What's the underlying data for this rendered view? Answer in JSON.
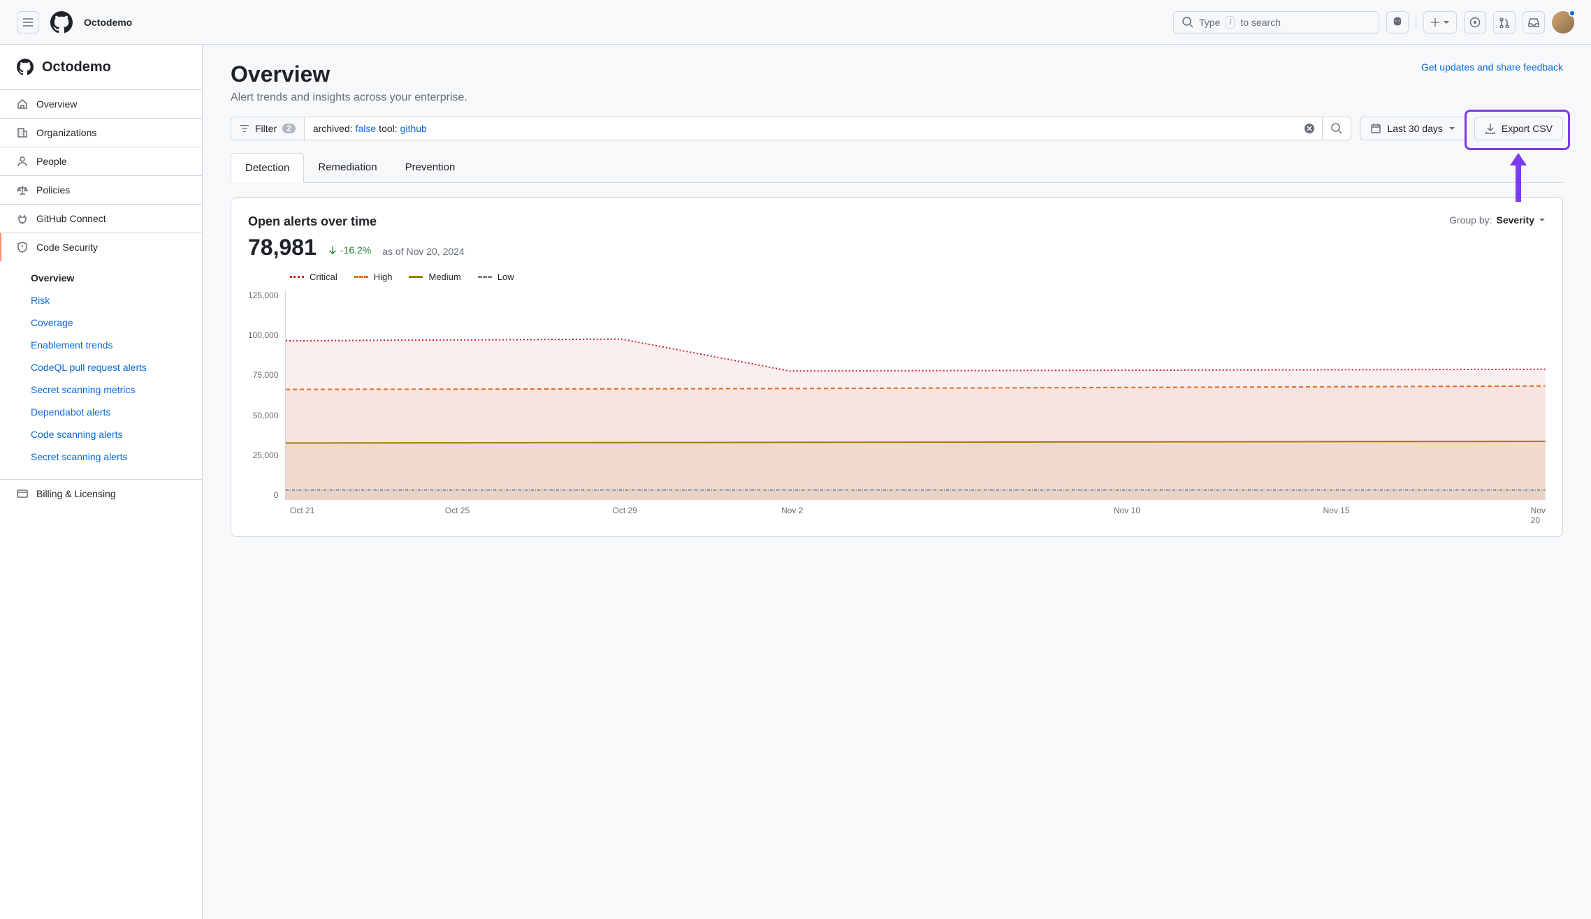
{
  "header": {
    "org_name": "Octodemo",
    "search_prefix": "Type",
    "search_key": "/",
    "search_suffix": "to search"
  },
  "sidebar": {
    "org_name": "Octodemo",
    "items": [
      {
        "label": "Overview"
      },
      {
        "label": "Organizations"
      },
      {
        "label": "People"
      },
      {
        "label": "Policies"
      },
      {
        "label": "GitHub Connect"
      },
      {
        "label": "Code Security"
      }
    ],
    "sub_items": [
      {
        "label": "Overview",
        "active": true
      },
      {
        "label": "Risk"
      },
      {
        "label": "Coverage"
      },
      {
        "label": "Enablement trends"
      },
      {
        "label": "CodeQL pull request alerts"
      },
      {
        "label": "Secret scanning metrics"
      },
      {
        "label": "Dependabot alerts"
      },
      {
        "label": "Code scanning alerts"
      },
      {
        "label": "Secret scanning alerts"
      }
    ],
    "billing_label": "Billing & Licensing"
  },
  "page": {
    "title": "Overview",
    "subtitle": "Alert trends and insights across your enterprise.",
    "feedback": "Get updates and share feedback"
  },
  "toolbar": {
    "filter_label": "Filter",
    "filter_count": "2",
    "filter_q_archived": "archived:",
    "filter_q_false": "false",
    "filter_q_tool": " tool:",
    "filter_q_github": "github",
    "date_label": "Last 30 days",
    "export_label": "Export CSV"
  },
  "tabs": [
    {
      "label": "Detection",
      "active": true
    },
    {
      "label": "Remediation"
    },
    {
      "label": "Prevention"
    }
  ],
  "card": {
    "title": "Open alerts over time",
    "stat": "78,981",
    "delta": "-16.2%",
    "as_of": "as of Nov 20, 2024",
    "group_by_label": "Group by:",
    "group_by_value": "Severity"
  },
  "chart": {
    "type": "line",
    "legend": [
      {
        "label": "Critical",
        "color": "#cf222e",
        "dash": "2 3"
      },
      {
        "label": "High",
        "color": "#e16f24",
        "dash": "6 4"
      },
      {
        "label": "Medium",
        "color": "#9a8000",
        "dash": "0"
      },
      {
        "label": "Low",
        "color": "#7d8590",
        "dash": "4 2 1 2"
      }
    ],
    "y_ticks": [
      "125,000",
      "100,000",
      "75,000",
      "50,000",
      "25,000",
      "0"
    ],
    "y_max": 125000,
    "x_labels": [
      "Oct 21",
      "Oct 25",
      "Oct 29",
      "Nov 2",
      "Nov 10",
      "Nov 15",
      "Nov 20"
    ],
    "x_domain": [
      0,
      30
    ],
    "x_tick_positions": [
      0,
      4,
      8,
      12,
      20,
      25,
      30
    ],
    "series": {
      "critical": {
        "color": "#cf222e",
        "fill": "rgba(207,34,46,0.08)",
        "points": [
          [
            0,
            95000
          ],
          [
            8,
            96000
          ],
          [
            12,
            77000
          ],
          [
            30,
            78000
          ]
        ],
        "dash": "2 3"
      },
      "high": {
        "color": "#e16f24",
        "fill": "rgba(225,111,36,0.08)",
        "points": [
          [
            0,
            66000
          ],
          [
            12,
            66500
          ],
          [
            30,
            68000
          ]
        ],
        "dash": "6 4"
      },
      "medium": {
        "color": "#9a8000",
        "fill": "rgba(154,128,0,0.08)",
        "points": [
          [
            0,
            34000
          ],
          [
            30,
            35000
          ]
        ],
        "dash": "0"
      },
      "low": {
        "color": "#7d8590",
        "fill": "rgba(125,133,144,0.08)",
        "points": [
          [
            0,
            6000
          ],
          [
            30,
            6000
          ]
        ],
        "dash": "4 2 1 2"
      }
    },
    "background_color": "#ffffff",
    "grid_color": "#d0d7de"
  },
  "colors": {
    "link": "#0969da",
    "highlight": "#7c3aed",
    "success": "#1a7f37"
  }
}
